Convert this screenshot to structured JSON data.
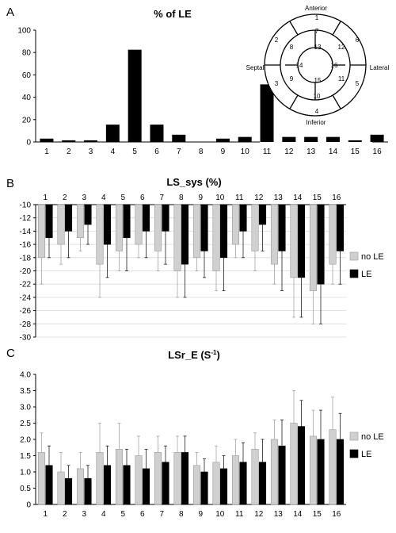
{
  "chart_data": [
    {
      "panel": "A",
      "type": "bar",
      "title": "% of LE",
      "categories": [
        "1",
        "2",
        "3",
        "4",
        "5",
        "6",
        "7",
        "8",
        "9",
        "10",
        "11",
        "12",
        "13",
        "14",
        "15",
        "16"
      ],
      "values": [
        3,
        1.5,
        1.5,
        15.5,
        82.5,
        15.5,
        6.5,
        0,
        3,
        4.5,
        51.5,
        4.5,
        4.5,
        4.5,
        1.5,
        6.5
      ],
      "ylim": [
        0,
        100
      ],
      "yticks": [
        "0",
        "20",
        "40",
        "60",
        "80",
        "100"
      ],
      "colors": {
        "bar": "#000000"
      },
      "bullseye": {
        "labels": {
          "anterior": "Anterior",
          "inferior": "Inferior",
          "septal": "Septal",
          "lateral": "Lateral"
        },
        "segments": [
          "1",
          "2",
          "3",
          "4",
          "5",
          "6",
          "7",
          "8",
          "9",
          "10",
          "11",
          "12",
          "13",
          "14",
          "15",
          "16"
        ]
      }
    },
    {
      "panel": "B",
      "type": "bar",
      "title": "LS_sys (%)",
      "categories": [
        "1",
        "2",
        "3",
        "4",
        "5",
        "6",
        "7",
        "8",
        "9",
        "10",
        "11",
        "12",
        "13",
        "14",
        "15",
        "16"
      ],
      "ylim": [
        -30,
        -10
      ],
      "yticks": [
        "-10",
        "-12",
        "-14",
        "-16",
        "-18",
        "-20",
        "-22",
        "-24",
        "-26",
        "-28",
        "-30"
      ],
      "series": [
        {
          "name": "no LE",
          "color": "#d0d0d0",
          "values": [
            -18,
            -16,
            -15,
            -19,
            -17,
            -16,
            -17,
            -20,
            -18,
            -20,
            -16,
            -17,
            -19,
            -21,
            -23,
            -19
          ],
          "errors": [
            4,
            3,
            2,
            5,
            3,
            2,
            3,
            4,
            2,
            3,
            2,
            3,
            3,
            6,
            5,
            3
          ]
        },
        {
          "name": "LE",
          "color": "#000000",
          "values": [
            -15,
            -14,
            -13,
            -16,
            -15,
            -14,
            -14,
            -19,
            -17,
            -18,
            -14,
            -13,
            -17,
            -21,
            -22,
            -17
          ],
          "errors": [
            3,
            4,
            3,
            5,
            5,
            4,
            5,
            5,
            4,
            5,
            4,
            4,
            6,
            6,
            6,
            5
          ]
        }
      ],
      "legend_position": "right"
    },
    {
      "panel": "C",
      "type": "bar",
      "title": "LSr_E (S",
      "title_sup": "-1",
      "title_end": ")",
      "categories": [
        "1",
        "2",
        "3",
        "4",
        "5",
        "6",
        "7",
        "8",
        "9",
        "10",
        "11",
        "12",
        "13",
        "14",
        "15",
        "16"
      ],
      "ylim": [
        0,
        4
      ],
      "yticks": [
        "0",
        "0.5",
        "1.0",
        "1.5",
        "2.0",
        "2.5",
        "3.0",
        "3.5",
        "4.0"
      ],
      "series": [
        {
          "name": "no LE",
          "color": "#d0d0d0",
          "values": [
            1.6,
            1.0,
            1.1,
            1.6,
            1.7,
            1.5,
            1.6,
            1.6,
            1.2,
            1.3,
            1.5,
            1.7,
            2.0,
            2.5,
            2.1,
            2.3
          ],
          "errors": [
            0.6,
            0.6,
            0.5,
            0.9,
            0.8,
            0.6,
            0.5,
            0.5,
            0.4,
            0.5,
            0.5,
            0.5,
            0.6,
            1.0,
            0.8,
            1.0
          ]
        },
        {
          "name": "LE",
          "color": "#000000",
          "values": [
            1.2,
            0.8,
            0.8,
            1.2,
            1.2,
            1.1,
            1.3,
            1.6,
            1.0,
            1.1,
            1.3,
            1.3,
            1.8,
            2.4,
            2.0,
            2.0
          ],
          "errors": [
            0.6,
            0.4,
            0.4,
            0.6,
            0.5,
            0.6,
            0.5,
            0.5,
            0.4,
            0.4,
            0.6,
            0.7,
            0.8,
            0.8,
            0.9,
            0.8
          ]
        }
      ],
      "legend_position": "right"
    }
  ]
}
